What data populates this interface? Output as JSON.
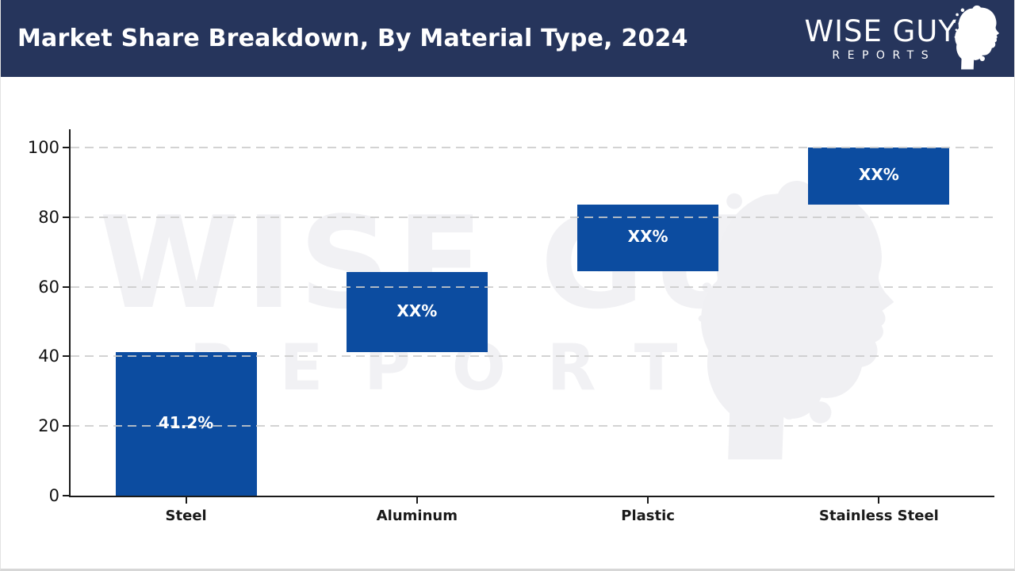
{
  "header": {
    "title": "Market Share Breakdown, By Material Type, 2024",
    "bg_color": "#26355C",
    "logo": {
      "line1": "WISE GUY",
      "line2": "REPORTS",
      "face_icon": "dotted-face-profile"
    }
  },
  "watermark": {
    "line1": "WISE GUY",
    "line2": "REPORTS",
    "face_icon": "dotted-face-profile"
  },
  "chart_data": {
    "type": "bar",
    "subtype": "waterfall",
    "title": "Market Share Breakdown, By Material Type, 2024",
    "categories": [
      "Steel",
      "Aluminum",
      "Plastic",
      "Stainless Steel"
    ],
    "segments": [
      {
        "category": "Steel",
        "start": 0,
        "end": 41.2,
        "label": "41.2%"
      },
      {
        "category": "Aluminum",
        "start": 41.2,
        "end": 64.2,
        "label": "XX%"
      },
      {
        "category": "Plastic",
        "start": 64.5,
        "end": 83.6,
        "label": "XX%"
      },
      {
        "category": "Stainless Steel",
        "start": 83.7,
        "end": 100,
        "label": "XX%"
      }
    ],
    "xlabel": "",
    "ylabel": "",
    "ylim": [
      0,
      105
    ],
    "yticks": [
      0,
      20,
      40,
      60,
      80,
      100
    ],
    "grid": "horizontal-dashed",
    "legend": "none",
    "bar_color": "#0C4CA0",
    "bar_label_color": "#FFFFFF",
    "tick_label_color": "#111111"
  }
}
